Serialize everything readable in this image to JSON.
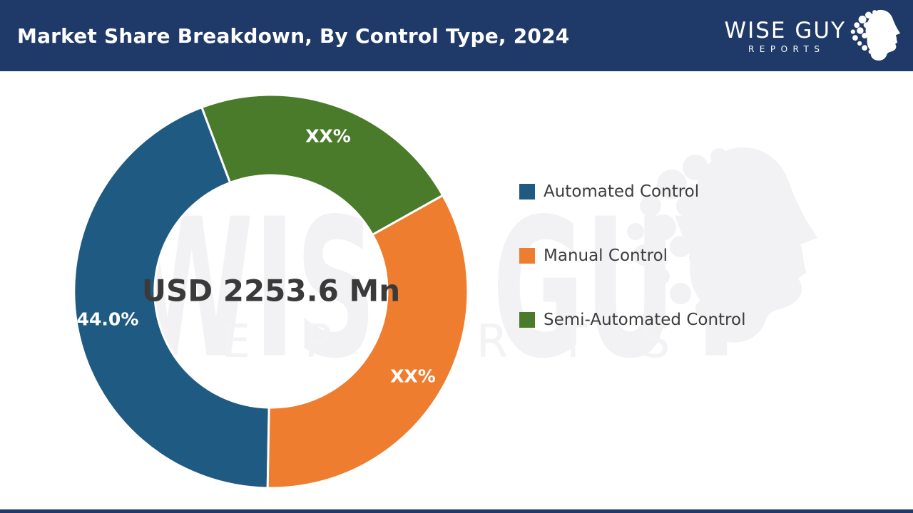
{
  "header": {
    "title": "Market Share Breakdown, By Control Type, 2024",
    "logo": {
      "line1": "WISE GUY",
      "line2": "REPORTS"
    }
  },
  "chart_data": {
    "type": "donut",
    "title": "Market Share Breakdown, By Control Type, 2024",
    "center_label": "USD 2253.6 Mn",
    "total_value": "USD 2253.6 Mn",
    "start_angle_deg": 181,
    "legend_position": "right",
    "segments": [
      {
        "name": "Automated Control",
        "value": 44.0,
        "label": "44.0%",
        "color": "#1F5A83"
      },
      {
        "name": "Semi-Automated Control",
        "value": 22.6,
        "label": "XX%",
        "color": "#4A7B2B"
      },
      {
        "name": "Manual Control",
        "value": 33.4,
        "label": "XX%",
        "color": "#EE7D2F"
      }
    ],
    "legend_order": [
      "Automated Control",
      "Manual Control",
      "Semi-Automated Control"
    ]
  },
  "watermark": {
    "line1": "WISE GUY",
    "line2": "REPORTS"
  },
  "colors": {
    "header_bg": "#1F3A68",
    "footer_bg": "#1F3A68",
    "center_text": "#3A3A3A",
    "legend_text": "#3D3D3D",
    "watermark": "#F2F2F5",
    "segment_gap": "#FFFFFF"
  }
}
